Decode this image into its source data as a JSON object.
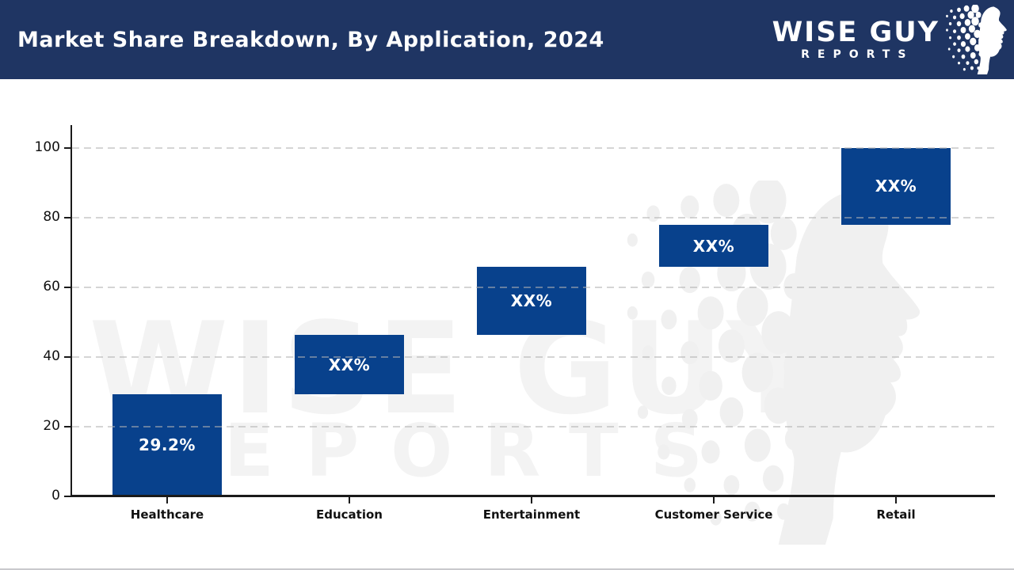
{
  "header": {
    "title": "Market Share Breakdown, By Application, 2024",
    "logo": {
      "line1": "WISE GUY",
      "line2": "REPORTS"
    },
    "bg_color": "#1f3563"
  },
  "watermark": {
    "line1": "WISE GUY",
    "line2": "REPORTS"
  },
  "chart_data": {
    "type": "bar",
    "subtype": "waterfall",
    "title": "Market Share Breakdown, By Application, 2024",
    "categories": [
      "Healthcare",
      "Education",
      "Entertainment",
      "Customer Service",
      "Retail"
    ],
    "segments": [
      {
        "category": "Healthcare",
        "start": 0,
        "end": 29.2,
        "value": 29.2,
        "label": "29.2%"
      },
      {
        "category": "Education",
        "start": 29.2,
        "end": 46.2,
        "value": 17.0,
        "label": "XX%"
      },
      {
        "category": "Entertainment",
        "start": 46.2,
        "end": 65.8,
        "value": 19.6,
        "label": "XX%"
      },
      {
        "category": "Customer Service",
        "start": 65.8,
        "end": 77.8,
        "value": 12.0,
        "label": "XX%"
      },
      {
        "category": "Retail",
        "start": 77.8,
        "end": 100.0,
        "value": 22.2,
        "label": "XX%"
      }
    ],
    "y_ticks": [
      0,
      20,
      40,
      60,
      80,
      100
    ],
    "ylim": [
      0,
      100
    ],
    "xlabel": "",
    "ylabel": "",
    "grid": "dashed-horizontal",
    "legend": "none",
    "bar_color": "#08418c",
    "bar_label_color": "#ffffff",
    "axis_color": "#1a1a1a"
  }
}
